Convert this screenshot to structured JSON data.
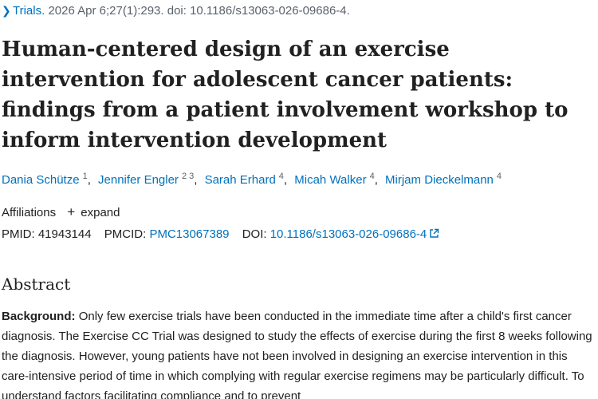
{
  "citation": {
    "journal": "Trials",
    "details": "2026 Apr 6;27(1):293. doi: 10.1186/s13063-026-09686-4."
  },
  "title": "Human-centered design of an exercise intervention for adolescent cancer patients: findings from a patient involvement workshop to inform intervention development",
  "authors": [
    {
      "name": "Dania Schütze",
      "affiliations": "1"
    },
    {
      "name": "Jennifer Engler",
      "affiliations": "2 3"
    },
    {
      "name": "Sarah Erhard",
      "affiliations": "4"
    },
    {
      "name": "Micah Walker",
      "affiliations": "4"
    },
    {
      "name": "Mirjam Dieckelmann",
      "affiliations": "4"
    }
  ],
  "affiliations": {
    "label": "Affiliations",
    "expand_label": "expand"
  },
  "identifiers": {
    "pmid_label": "PMID:",
    "pmid": "41943144",
    "pmcid_label": "PMCID:",
    "pmcid": "PMC13067389",
    "doi_label": "DOI:",
    "doi": "10.1186/s13063-026-09686-4"
  },
  "abstract": {
    "heading": "Abstract",
    "background_label": "Background:",
    "background_text": "Only few exercise trials have been conducted in the immediate time after a child's first cancer diagnosis. The Exercise CC Trial was designed to study the effects of exercise during the first 8 weeks following the diagnosis. However, young patients have not been involved in designing an exercise intervention in this care-intensive period of time in which complying with regular exercise regimens may be particularly difficult. To understand factors facilitating compliance and to prevent"
  },
  "icons": {
    "chevron": "chevron-right-icon",
    "plus": "plus-icon",
    "external_link": "external-link-icon"
  },
  "colors": {
    "link": "#0071bc",
    "text": "#212121",
    "muted": "#5b616b"
  }
}
